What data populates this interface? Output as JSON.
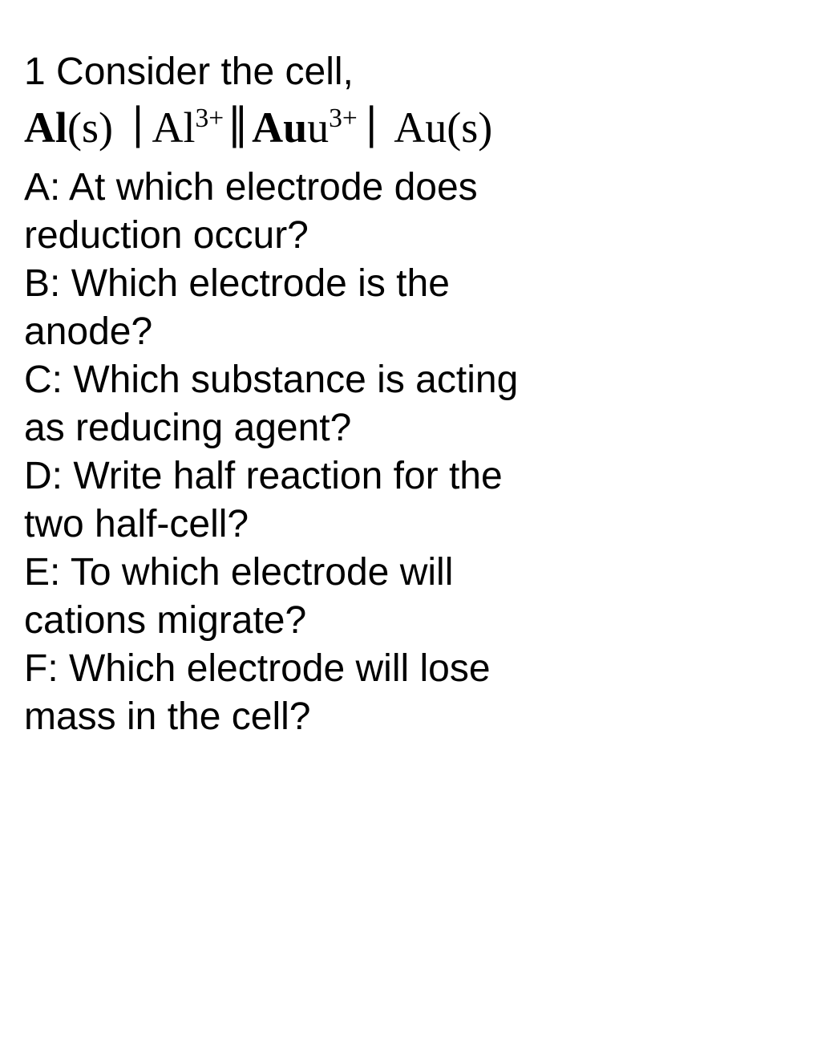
{
  "intro": "1 Consider the cell,",
  "formula": {
    "Al_bold": "Al",
    "s1": "(s)",
    "bar1": "∣",
    "Al_ion": "Al",
    "sup1": "3+",
    "bar2": "∥",
    "Au_bold": "Au",
    "u_ion": "u",
    "sup2": "3+",
    "bar3": "∣",
    "Au_s": "Au(s)"
  },
  "qA1": "A:  At which electrode does",
  "qA2": "reduction occur?",
  "qB1": "B:  Which electrode is the",
  "qB2": "anode?",
  "qC1": "C:  Which substance is acting",
  "qC2": "as reducing agent?",
  "qD1": "D:  Write half reaction for the",
  "qD2": "two half-cell?",
  "qE1": "E:  To which electrode will",
  "qE2": "cations migrate?",
  "qF1": "F:  Which electrode will lose",
  "qF2": "mass in the cell?"
}
